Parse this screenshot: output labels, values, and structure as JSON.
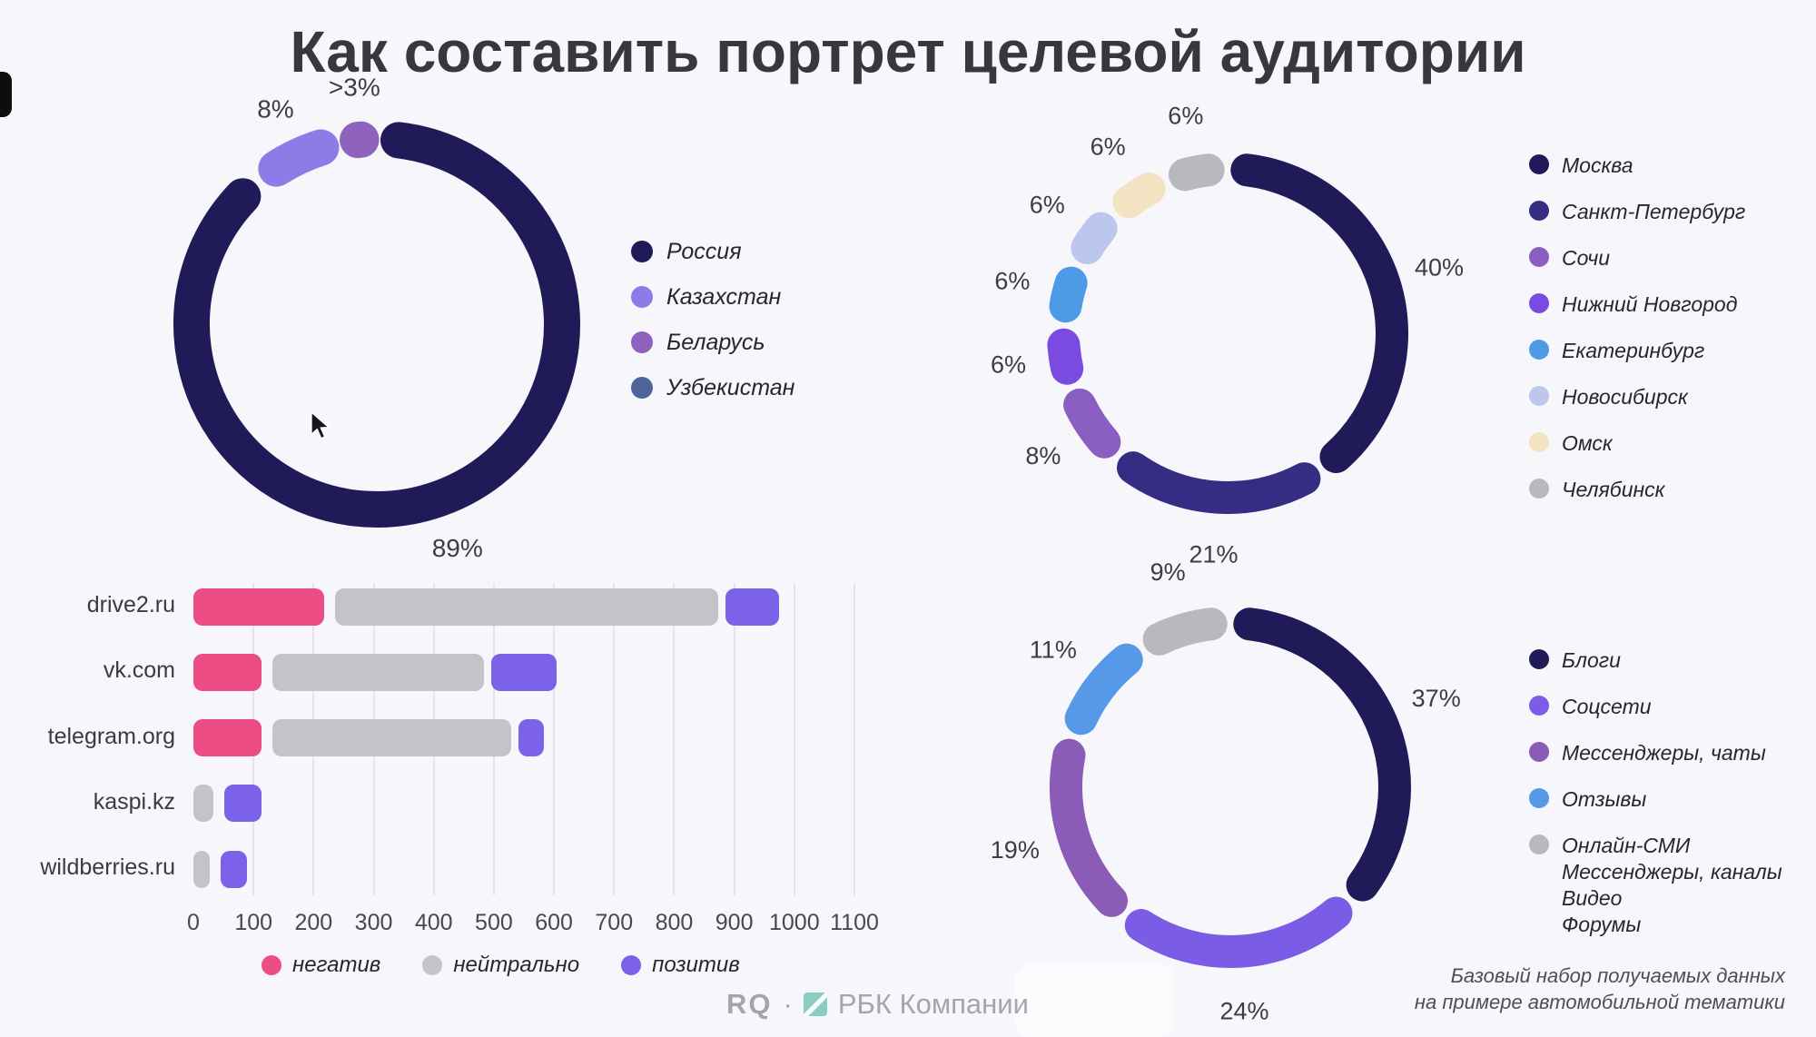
{
  "page": {
    "background": "#f7f6fa",
    "title": "Как составить портрет целевой аудитории",
    "footnote_lines": [
      "Базовый набор получаемых данных",
      "на примере автомобильной тематики"
    ],
    "watermark": {
      "rq": "RQ",
      "separator": "·",
      "brand": "РБК Компании"
    }
  },
  "chart_data": [
    {
      "id": "audience-countries",
      "type": "donut",
      "legend_position": "right",
      "segments": [
        {
          "name": "Россия",
          "value": 89,
          "label": "89%",
          "color": "#211a58"
        },
        {
          "name": "Казахстан",
          "value": 8,
          "label": "8%",
          "color": "#8d7ce8"
        },
        {
          "name": "Беларусь",
          "value": 3,
          "label": ">3%",
          "color": "#8f63bd"
        },
        {
          "name": "Узбекистан",
          "value": 0,
          "label": "",
          "color": "#50649c"
        }
      ]
    },
    {
      "id": "audience-cities",
      "type": "donut",
      "legend_position": "right",
      "segments": [
        {
          "name": "Москва",
          "value": 40,
          "label": "40%",
          "color": "#211a58"
        },
        {
          "name": "Санкт-Петербург",
          "value": 21,
          "label": "21%",
          "color": "#372c83"
        },
        {
          "name": "Сочи",
          "value": 8,
          "label": "8%",
          "color": "#8a5fc2"
        },
        {
          "name": "Нижний Новгород",
          "value": 6,
          "label": "6%",
          "color": "#7a4be0"
        },
        {
          "name": "Екатеринбург",
          "value": 6,
          "label": "6%",
          "color": "#4f9ae6"
        },
        {
          "name": "Новосибирск",
          "value": 6,
          "label": "6%",
          "color": "#bcc6ee"
        },
        {
          "name": "Омск",
          "value": 6,
          "label": "6%",
          "color": "#f3e3c3"
        },
        {
          "name": "Челябинск",
          "value": 6,
          "label": "6%",
          "color": "#b8b8be"
        }
      ]
    },
    {
      "id": "content-sources",
      "type": "donut",
      "legend_position": "right",
      "segments": [
        {
          "name": "Блоги",
          "value": 37,
          "label": "37%",
          "color": "#211a58"
        },
        {
          "name": "Соцсети",
          "value": 24,
          "label": "24%",
          "color": "#7a5ce6"
        },
        {
          "name": "Мессенджеры, чаты",
          "value": 19,
          "label": "19%",
          "color": "#8a5cb8"
        },
        {
          "name": "Отзывы",
          "value": 11,
          "label": "11%",
          "color": "#5599e8"
        },
        {
          "name": "Онлайн-СМИ\nМессенджеры, каналы\nВидео\nФорумы",
          "value": 9,
          "label": "9%",
          "color": "#b8b8be"
        }
      ]
    },
    {
      "id": "sentiment-by-site",
      "type": "stacked-bar-horizontal",
      "categories": [
        "drive2.ru",
        "vk.com",
        "telegram.org",
        "kaspi.kz",
        "wildberries.ru"
      ],
      "series": [
        {
          "name": "негатив",
          "color": "#ec4d85",
          "values": [
            230,
            125,
            125,
            0,
            0
          ]
        },
        {
          "name": "нейтрально",
          "color": "#c4c3c9",
          "values": [
            650,
            365,
            410,
            45,
            40
          ]
        },
        {
          "name": "позитив",
          "color": "#7b62e8",
          "values": [
            100,
            120,
            55,
            75,
            55
          ]
        }
      ],
      "x_ticks": [
        0,
        100,
        200,
        300,
        400,
        500,
        600,
        700,
        800,
        900,
        1000,
        1100
      ],
      "xlim": [
        0,
        1100
      ],
      "grid": true,
      "legend_position": "bottom"
    }
  ]
}
